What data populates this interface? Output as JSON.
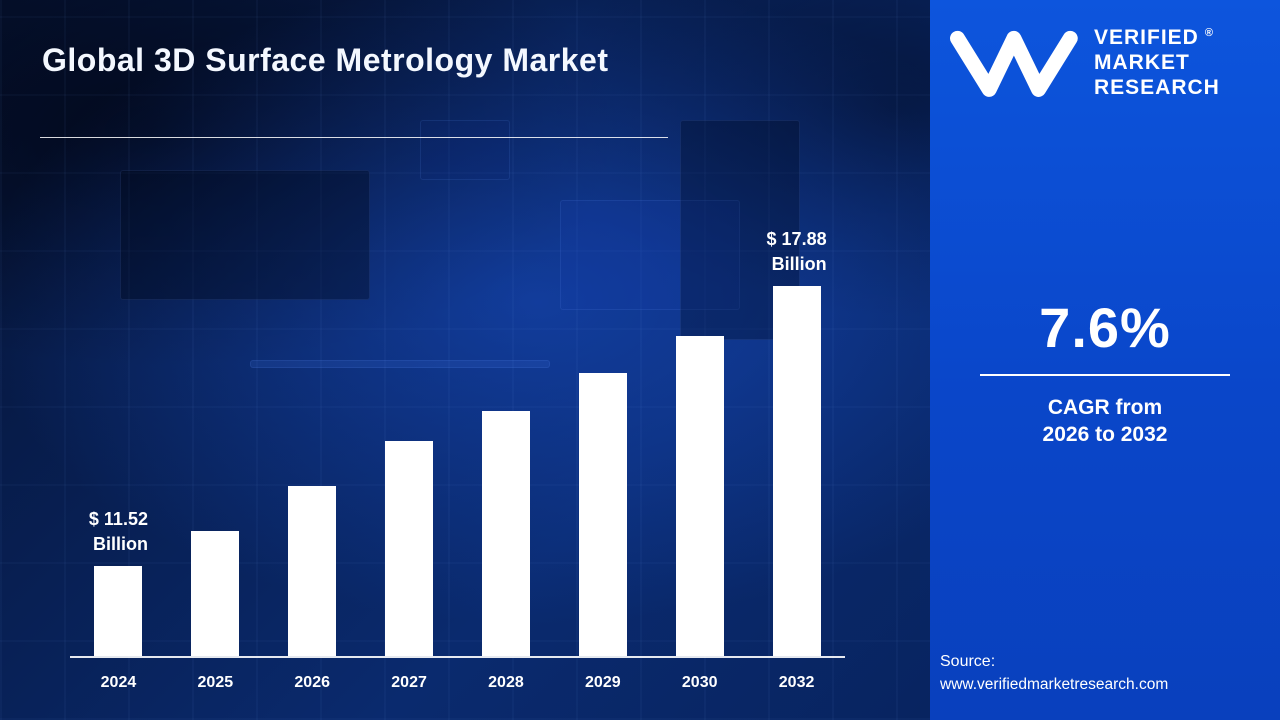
{
  "title": "Global 3D Surface Metrology Market",
  "logo": {
    "monogram": "VM",
    "line1": "VERIFIED",
    "registered": "®",
    "line2": "MARKET",
    "line3": "RESEARCH"
  },
  "panel": {
    "cagr_value": "7.6%",
    "cagr_line1": "CAGR from",
    "cagr_line2": "2026 to 2032",
    "source_label": "Source:",
    "source_url": "www.verifiedmarketresearch.com"
  },
  "chart_data": {
    "type": "bar",
    "title": "Global 3D Surface Metrology Market",
    "categories": [
      "2024",
      "2025",
      "2026",
      "2027",
      "2028",
      "2029",
      "2030",
      "2032"
    ],
    "values": [
      11.52,
      12.31,
      13.34,
      14.36,
      15.04,
      15.9,
      16.74,
      17.88
    ],
    "unit": "USD Billion",
    "xlabel": "",
    "ylabel": "",
    "ylim": [
      9.47,
      19.5
    ],
    "grid": false,
    "legend": false,
    "bar_color": "#ffffff",
    "annotations": [
      {
        "index": 0,
        "lines": [
          "$ 11.52",
          "Billion"
        ]
      },
      {
        "index": 7,
        "lines": [
          "$ 17.88",
          "Billion"
        ]
      }
    ]
  },
  "colors": {
    "background_dark": "#0a2a6e",
    "panel_blue": "#0c4fd4",
    "bar_white": "#ffffff",
    "text_white": "#ffffff"
  }
}
